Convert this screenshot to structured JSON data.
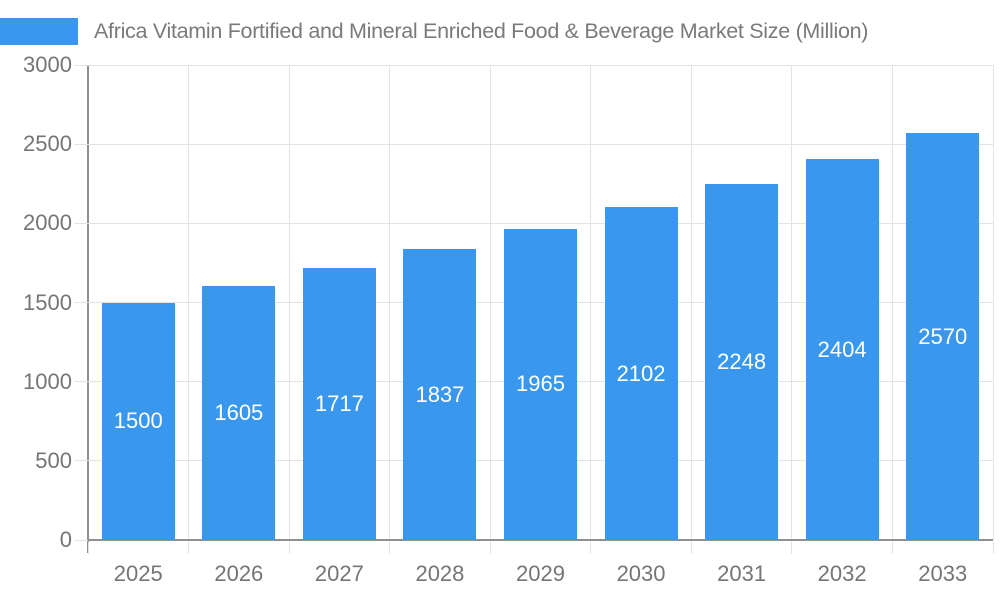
{
  "chart_data": {
    "type": "bar",
    "title": "Africa Vitamin Fortified and Mineral Enriched Food & Beverage Market Size (Million)",
    "categories": [
      "2025",
      "2026",
      "2027",
      "2028",
      "2029",
      "2030",
      "2031",
      "2032",
      "2033"
    ],
    "values": [
      1500,
      1605,
      1717,
      1837,
      1965,
      2102,
      2248,
      2404,
      2570
    ],
    "series_name": "Africa Vitamin Fortified and Mineral Enriched Food & Beverage Market Size (Million)",
    "xlabel": "",
    "ylabel": "",
    "ylim": [
      0,
      3000
    ],
    "yticks": [
      0,
      500,
      1000,
      1500,
      2000,
      2500,
      3000
    ],
    "grid": true,
    "legend_position": "top-left",
    "value_labels": "centered-inside-bars"
  },
  "colors": {
    "bar": "#3a97ee",
    "grid": "#e3e3e3",
    "axis": "#8f8f8f",
    "tick_label": "#757575",
    "title": "#7a7a7a",
    "value_label": "#ffffff"
  }
}
